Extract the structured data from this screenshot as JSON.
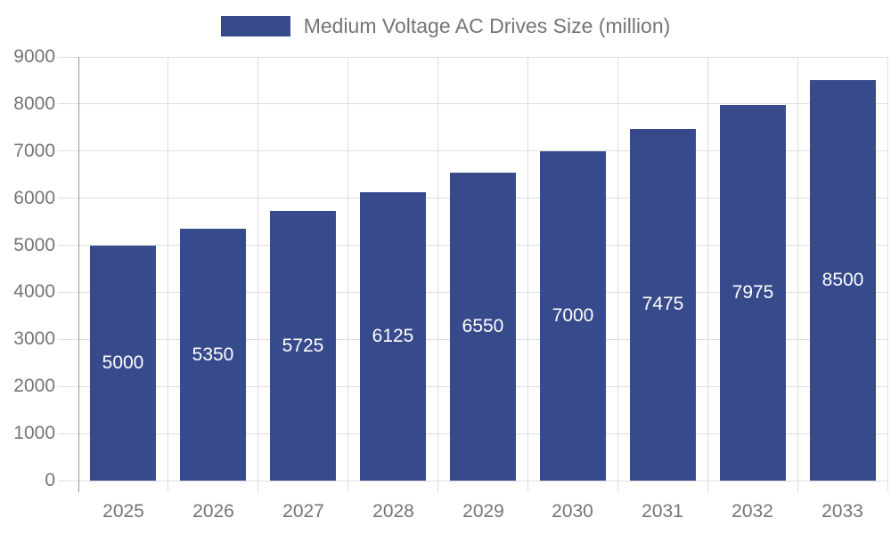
{
  "legend": {
    "label": "Medium Voltage AC Drives Size (million)"
  },
  "chart_data": {
    "type": "bar",
    "title": "Medium Voltage AC Drives Size (million)",
    "series": [
      {
        "name": "Medium Voltage AC Drives Size (million)",
        "values": [
          5000,
          5350,
          5725,
          6125,
          6550,
          7000,
          7475,
          7975,
          8500
        ]
      }
    ],
    "categories": [
      "2025",
      "2026",
      "2027",
      "2028",
      "2029",
      "2030",
      "2031",
      "2032",
      "2033"
    ],
    "value_labels": [
      "5000",
      "5350",
      "5725",
      "6125",
      "6550",
      "7000",
      "7475",
      "7975",
      "8500"
    ],
    "xlabel": "",
    "ylabel": "",
    "ylim": [
      0,
      9000
    ],
    "ytick_step": 1000,
    "yticks": [
      0,
      1000,
      2000,
      3000,
      4000,
      5000,
      6000,
      7000,
      8000,
      9000
    ],
    "grid": true,
    "legend_position": "top",
    "value_label_position": "center-inside-bar",
    "colors": {
      "bar": "#364A8C",
      "value_label": "#FFFFFF",
      "axis_text": "#757575",
      "gridline": "#DDDDE2",
      "axis_line": "#949494",
      "background": "#FFFFFF"
    }
  }
}
